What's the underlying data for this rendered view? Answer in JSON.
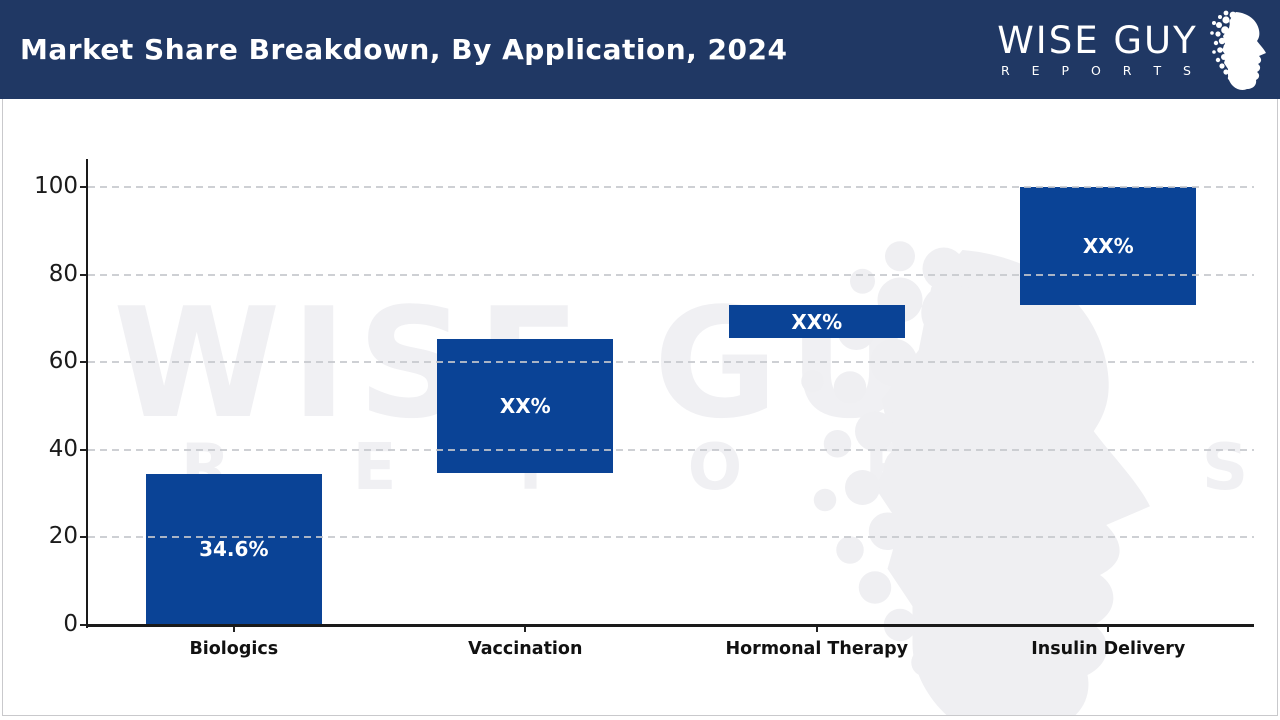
{
  "header": {
    "title": "Market Share Breakdown, By Application, 2024",
    "logo": {
      "wordmark": "WISE GUY",
      "subtext": "R E P O R T S"
    }
  },
  "watermark": {
    "wordmark": "WISE GUY",
    "subtext": "R E P O R T S"
  },
  "colors": {
    "header_bg": "#203864",
    "bar": "#0a4396",
    "bar_label": "#ffffff",
    "watermark": "#f0f0f3",
    "gridline": "#c6c8cd",
    "axis": "#1a1a1a"
  },
  "chart_data": {
    "type": "bar",
    "subtype": "waterfall",
    "title": "Market Share Breakdown, By Application, 2024",
    "categories": [
      "Biologics",
      "Vaccination",
      "Hormonal Therapy",
      "Insulin Delivery"
    ],
    "segments": [
      {
        "category": "Biologics",
        "start": 0,
        "end": 34.6,
        "label": "34.6%"
      },
      {
        "category": "Vaccination",
        "start": 34.6,
        "end": 65.4,
        "label": "XX%"
      },
      {
        "category": "Hormonal Therapy",
        "start": 65.4,
        "end": 73.1,
        "label": "XX%"
      },
      {
        "category": "Insulin Delivery",
        "start": 73.1,
        "end": 100,
        "label": "XX%"
      }
    ],
    "yticks": [
      0,
      20,
      40,
      60,
      80,
      100
    ],
    "ylim": [
      0,
      105
    ],
    "xlabel": "",
    "ylabel": "",
    "grid": "horizontal-dashed",
    "legend": "none"
  }
}
